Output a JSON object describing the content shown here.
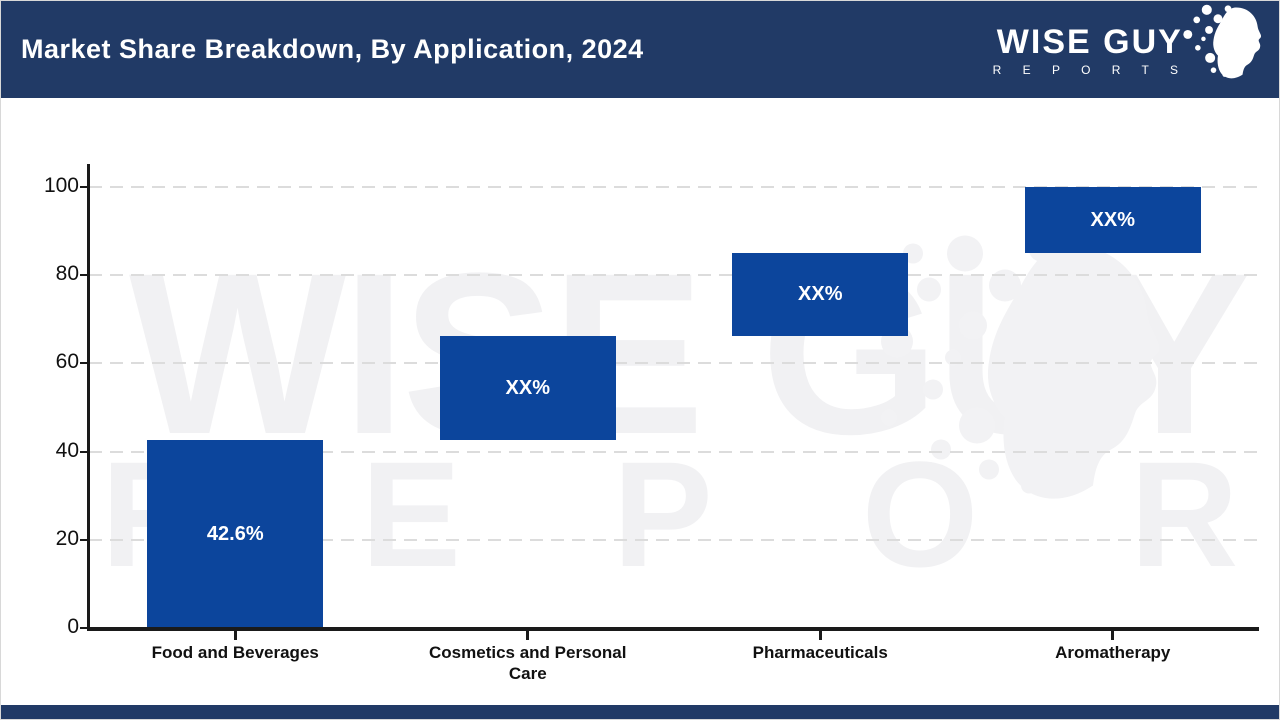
{
  "header": {
    "title": "Market Share Breakdown, By Application, 2024",
    "logo": {
      "line1": "WISE GUY",
      "line2": "R E P O R T S"
    }
  },
  "watermark": {
    "line1": "WISE GUY",
    "line2": "R E P O R T S"
  },
  "chart_data": {
    "type": "bar",
    "subtype": "waterfall-stacked",
    "title": "Market Share Breakdown, By Application, 2024",
    "categories": [
      "Food and Beverages",
      "Cosmetics and Personal Care",
      "Pharmaceuticals",
      "Aromatherapy"
    ],
    "segments": [
      {
        "category": "Food and Beverages",
        "start": 0,
        "end": 42.6,
        "label": "42.6%"
      },
      {
        "category": "Cosmetics and Personal Care",
        "start": 42.6,
        "end": 66.2,
        "label": "XX%"
      },
      {
        "category": "Pharmaceuticals",
        "start": 66.2,
        "end": 85,
        "label": "XX%"
      },
      {
        "category": "Aromatherapy",
        "start": 85,
        "end": 100,
        "label": "XX%"
      }
    ],
    "ylim": [
      0,
      100
    ],
    "yticks": [
      0,
      20,
      40,
      60,
      80,
      100
    ],
    "xlabel": "",
    "ylabel": "",
    "grid": "dashed-horizontal",
    "legend": "none",
    "bar_color": "#0c459c",
    "bar_label_color": "#ffffff"
  },
  "colors": {
    "header_bg": "#213a66",
    "footer_bg": "#213a66",
    "bar": "#0c459c",
    "grid": "#dcdcdc",
    "axis": "#1a1a1a",
    "watermark": "#f1f1f3"
  }
}
